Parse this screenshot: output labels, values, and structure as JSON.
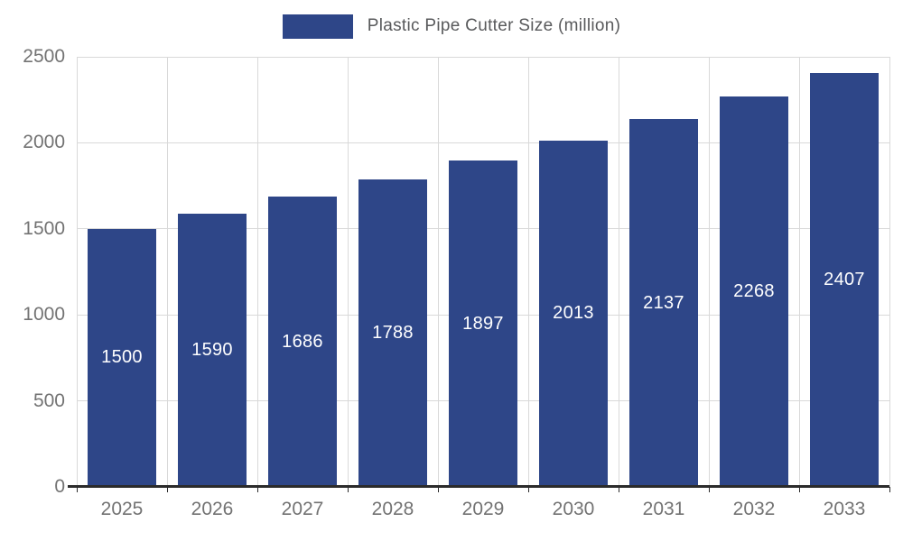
{
  "chart_data": {
    "type": "bar",
    "title": "Plastic Pipe Cutter Size (million)",
    "categories": [
      "2025",
      "2026",
      "2027",
      "2028",
      "2029",
      "2030",
      "2031",
      "2032",
      "2033"
    ],
    "values": [
      1500,
      1590,
      1686,
      1788,
      1897,
      2013,
      2137,
      2268,
      2407
    ],
    "xlabel": "",
    "ylabel": "",
    "ylim": [
      0,
      2500
    ],
    "yticks": [
      0,
      500,
      1000,
      1500,
      2000,
      2500
    ],
    "grid": true,
    "legend_position": "top",
    "bar_color": "#2e4688",
    "value_label_color": "#ffffff",
    "axis_label_color": "#737373",
    "gridline_color": "#d9d9d9",
    "axis_line_color": "#2b2b2b"
  }
}
